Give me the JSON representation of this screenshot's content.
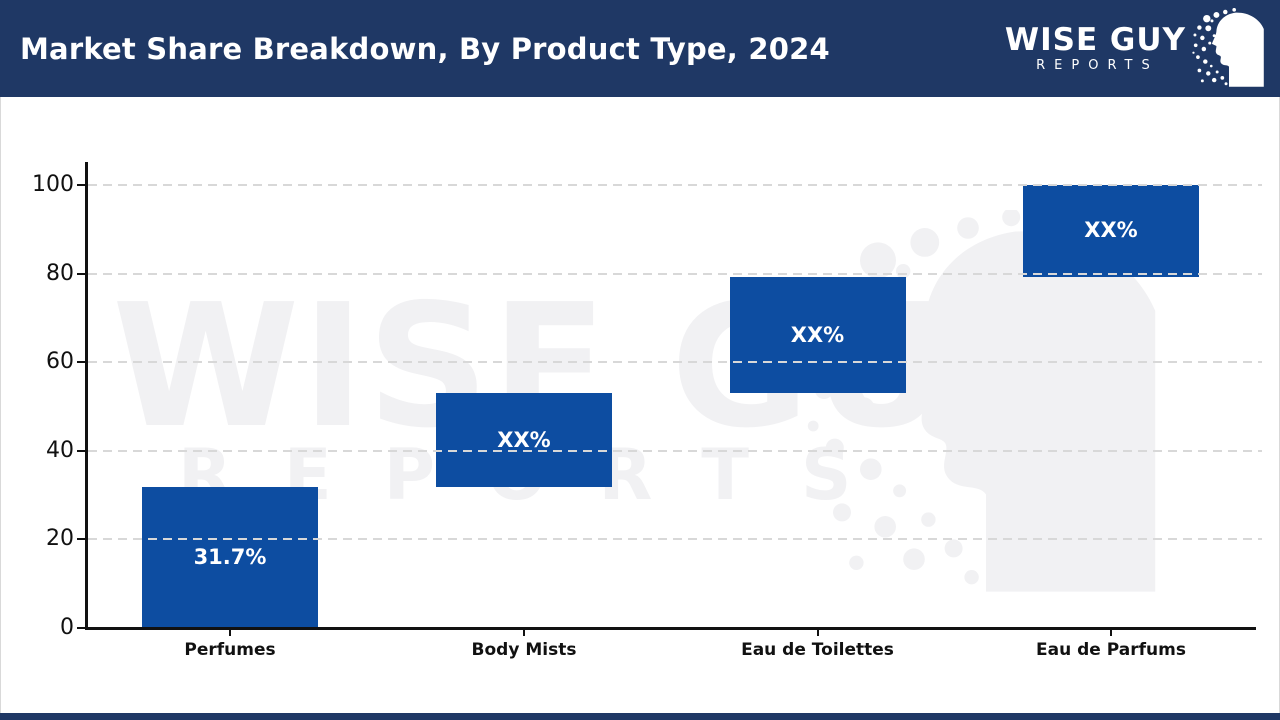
{
  "header": {
    "title": "Market Share Breakdown, By Product Type, 2024",
    "logo": {
      "name": "WISE GUY",
      "sub": "REPORTS"
    }
  },
  "watermark": {
    "line1": "WISE GUY",
    "line2": "REPORTS"
  },
  "colors": {
    "header_bg": "#1f3865",
    "bar": "#0d4da1",
    "bar_label": "#ffffff",
    "grid": "#d8d8d8",
    "axis": "#111111",
    "watermark": "#f1f1f3"
  },
  "chart_data": {
    "type": "bar",
    "subtype": "waterfall",
    "title": "Market Share Breakdown, By Product Type, 2024",
    "categories": [
      "Perfumes",
      "Body Mists",
      "Eau de Toilettes",
      "Eau de Parfums"
    ],
    "bars": [
      {
        "category": "Perfumes",
        "start": 0,
        "end": 31.7,
        "label": "31.7%"
      },
      {
        "category": "Body Mists",
        "start": 31.7,
        "end": 53.0,
        "label": "XX%"
      },
      {
        "category": "Eau de Toilettes",
        "start": 53.0,
        "end": 79.3,
        "label": "XX%"
      },
      {
        "category": "Eau de Parfums",
        "start": 79.3,
        "end": 100,
        "label": "XX%"
      }
    ],
    "yticks": [
      0,
      20,
      40,
      60,
      80,
      100
    ],
    "ylim": [
      0,
      105.5
    ],
    "xlabel": "",
    "ylabel": "",
    "grid": "horizontal-dashed",
    "legend": "none"
  }
}
